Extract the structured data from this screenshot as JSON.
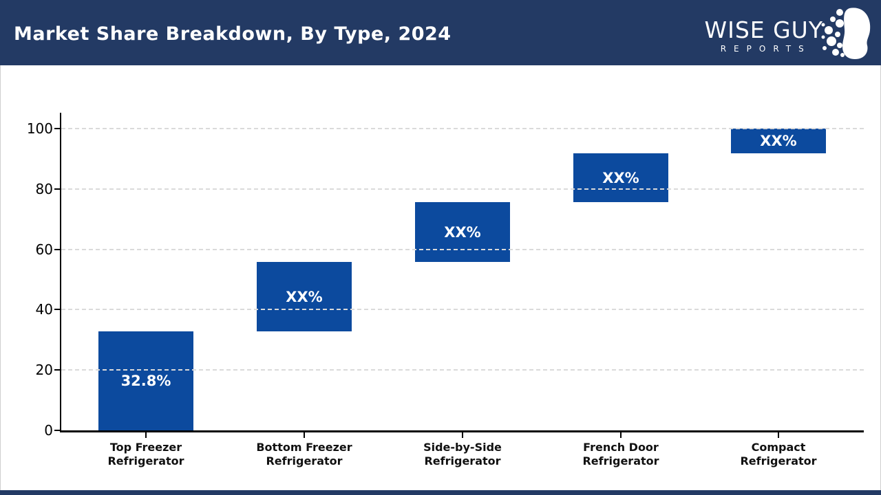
{
  "header": {
    "title": "Market Share Breakdown, By Type, 2024",
    "logo": {
      "line1": "WISE GUY",
      "line2": "REPORTS"
    }
  },
  "watermark": {
    "line1": "WISE GUY",
    "line2": "REPORTS"
  },
  "colors": {
    "header_bg": "#233A64",
    "footer_bg": "#233A64",
    "bar": "#0C4A9E",
    "bar_label_text": "#FFFFFF",
    "grid": "#DADADA",
    "axis": "#000000",
    "watermark": "#F4F4F6"
  },
  "chart_data": {
    "type": "bar",
    "subtype": "waterfall",
    "title": "Market Share Breakdown, By Type, 2024",
    "categories": [
      "Top Freezer Refrigerator",
      "Bottom Freezer Refrigerator",
      "Side-by-Side Refrigerator",
      "French Door Refrigerator",
      "Compact Refrigerator"
    ],
    "category_lines": [
      [
        "Top Freezer",
        "Refrigerator"
      ],
      [
        "Bottom Freezer",
        "Refrigerator"
      ],
      [
        "Side-by-Side",
        "Refrigerator"
      ],
      [
        "French Door",
        "Refrigerator"
      ],
      [
        "Compact",
        "Refrigerator"
      ]
    ],
    "segments": [
      {
        "start": 0,
        "end": 32.8,
        "label": "32.8%"
      },
      {
        "start": 32.8,
        "end": 55.8,
        "label": "XX%"
      },
      {
        "start": 55.8,
        "end": 75.6,
        "label": "XX%"
      },
      {
        "start": 75.6,
        "end": 91.8,
        "label": "XX%"
      },
      {
        "start": 91.8,
        "end": 100,
        "label": "XX%"
      }
    ],
    "xlabel": "",
    "ylabel": "",
    "ylim": [
      0,
      100
    ],
    "yticks": [
      0,
      20,
      40,
      60,
      80,
      100
    ],
    "grid": "horizontal-dashed",
    "legend": "none"
  }
}
